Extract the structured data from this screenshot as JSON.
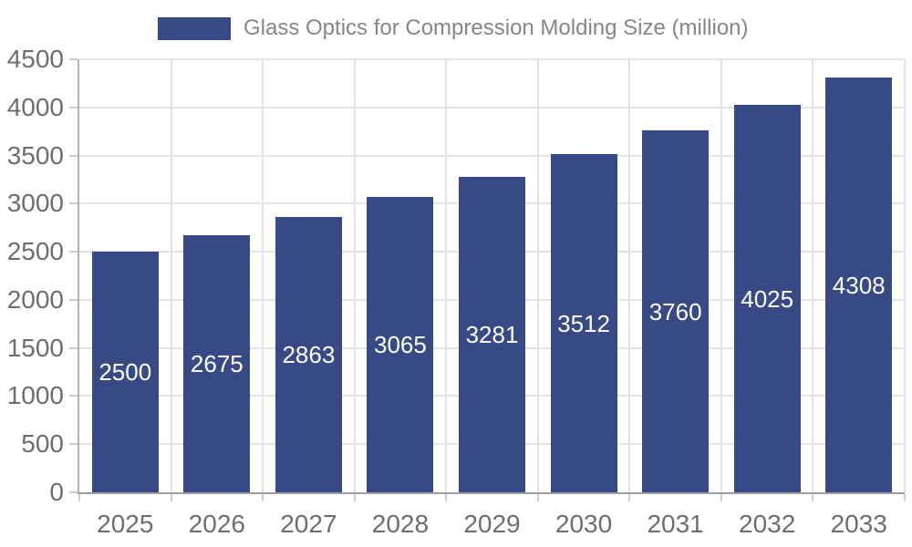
{
  "chart_data": {
    "type": "bar",
    "title": "Glass Optics for Compression Molding Size (million)",
    "categories": [
      "2025",
      "2026",
      "2027",
      "2028",
      "2029",
      "2030",
      "2031",
      "2032",
      "2033"
    ],
    "values": [
      2500,
      2675,
      2863,
      3065,
      3281,
      3512,
      3760,
      4025,
      4308
    ],
    "xlabel": "",
    "ylabel": "",
    "ylim": [
      0,
      4500
    ],
    "ytick_step": 500,
    "grid": true,
    "legend_position": "top-center",
    "value_label_position": "inside-center",
    "colors": {
      "bar": "#384a85",
      "value_label": "#ffffff",
      "axis_text": "#6e6e6e",
      "legend_text": "#868686",
      "gridline": "#e3e3e3",
      "axis_line": "#a6a6a6",
      "tick": "#cccccc",
      "background": "#ffffff"
    }
  }
}
